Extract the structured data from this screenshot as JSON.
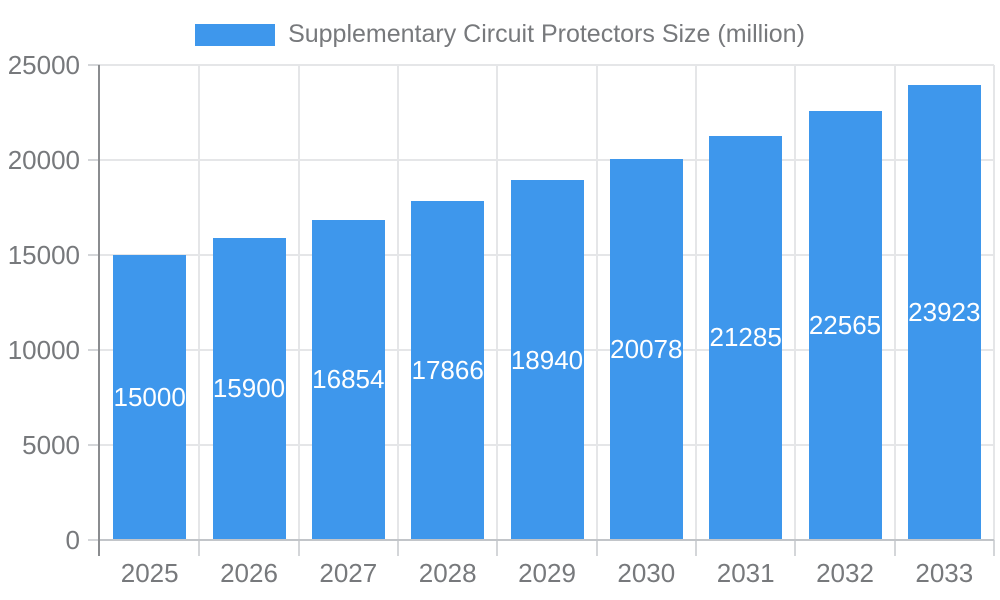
{
  "chart_data": {
    "type": "bar",
    "title": "",
    "series_name": "Supplementary Circuit Protectors Size (million)",
    "categories": [
      "2025",
      "2026",
      "2027",
      "2028",
      "2029",
      "2030",
      "2031",
      "2032",
      "2033"
    ],
    "values": [
      15000,
      15900,
      16854,
      17866,
      18940,
      20078,
      21285,
      22565,
      23923
    ],
    "xlabel": "",
    "ylabel": "",
    "ylim": [
      0,
      25000
    ],
    "yticks": [
      0,
      5000,
      10000,
      15000,
      20000,
      25000
    ],
    "grid": true,
    "legend_position": "top",
    "value_label_position": "inside-center"
  },
  "colors": {
    "bar": "#3E97EC",
    "grid": "#E5E6E8",
    "tick": "#D4D6D9",
    "y_axis_line": "#8A8C8F",
    "x_axis_line": "#C2C5C9",
    "axis_text": "#77797C",
    "value_label_text": "#FFFFFF",
    "background": "#FFFFFF"
  }
}
